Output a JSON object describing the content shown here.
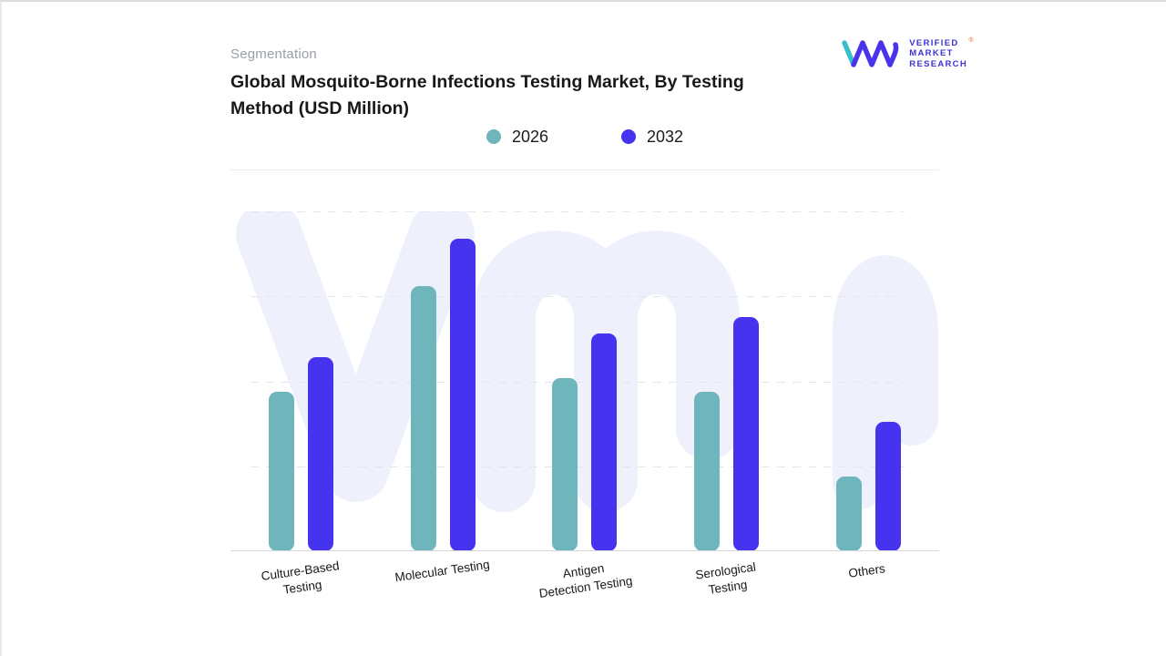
{
  "header": {
    "eyebrow": "Segmentation",
    "title_lines": [
      "Global Mosquito-Borne Infections Testing Market, By Testing",
      "Method (USD Million)"
    ]
  },
  "logo": {
    "lines": [
      "VERIFIED",
      "MARKET",
      "RESEARCH"
    ],
    "registered_mark": "®",
    "text_color": "#3d33d1",
    "teal": "#35bfca",
    "indigo": "#4a33e8"
  },
  "legend": [
    {
      "label": "2026",
      "color": "#6FB5BC"
    },
    {
      "label": "2032",
      "color": "#4633F0"
    }
  ],
  "chart_data": {
    "type": "bar",
    "title": "Global Mosquito-Borne Infections Testing Market, By Testing Method (USD Million)",
    "categories": [
      "Culture-Based Testing",
      "Molecular Testing",
      "Antigen Detection Testing",
      "Serological Testing",
      "Others"
    ],
    "category_label_lines": [
      [
        "Culture-Based",
        "Testing"
      ],
      [
        "Molecular Testing"
      ],
      [
        "Antigen",
        "Detection Testing"
      ],
      [
        "Serological",
        "Testing"
      ],
      [
        "Others"
      ]
    ],
    "series": [
      {
        "name": "2026",
        "color": "#6FB5BC",
        "values": [
          47,
          78,
          51,
          47,
          22
        ]
      },
      {
        "name": "2032",
        "color": "#4633F0",
        "values": [
          57,
          92,
          64,
          69,
          38
        ]
      }
    ],
    "xlabel": "",
    "ylabel": "",
    "ylim": [
      0,
      100
    ],
    "value_scale": "percent of plot height (y-axis unlabeled in source image)",
    "grid": "horizontal dashed",
    "legend_position": "top-center",
    "watermark": "vmr monogram, very light indigo"
  }
}
